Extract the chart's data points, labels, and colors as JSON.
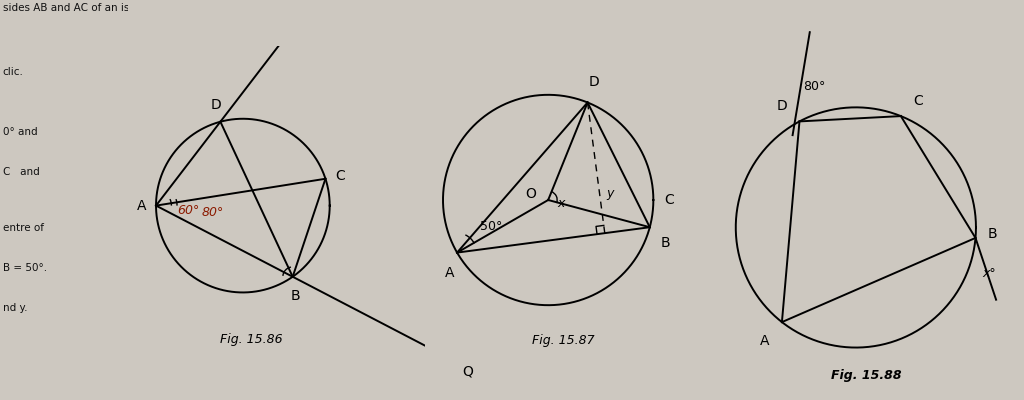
{
  "bg_color": "#cdc8c0",
  "panel_bg": "#d8d3cc",
  "lw": 1.4,
  "fig86_label": "Fig. 15.86",
  "fig87_label": "Fig. 15.87",
  "fig88_label": "Fig. 15.88"
}
